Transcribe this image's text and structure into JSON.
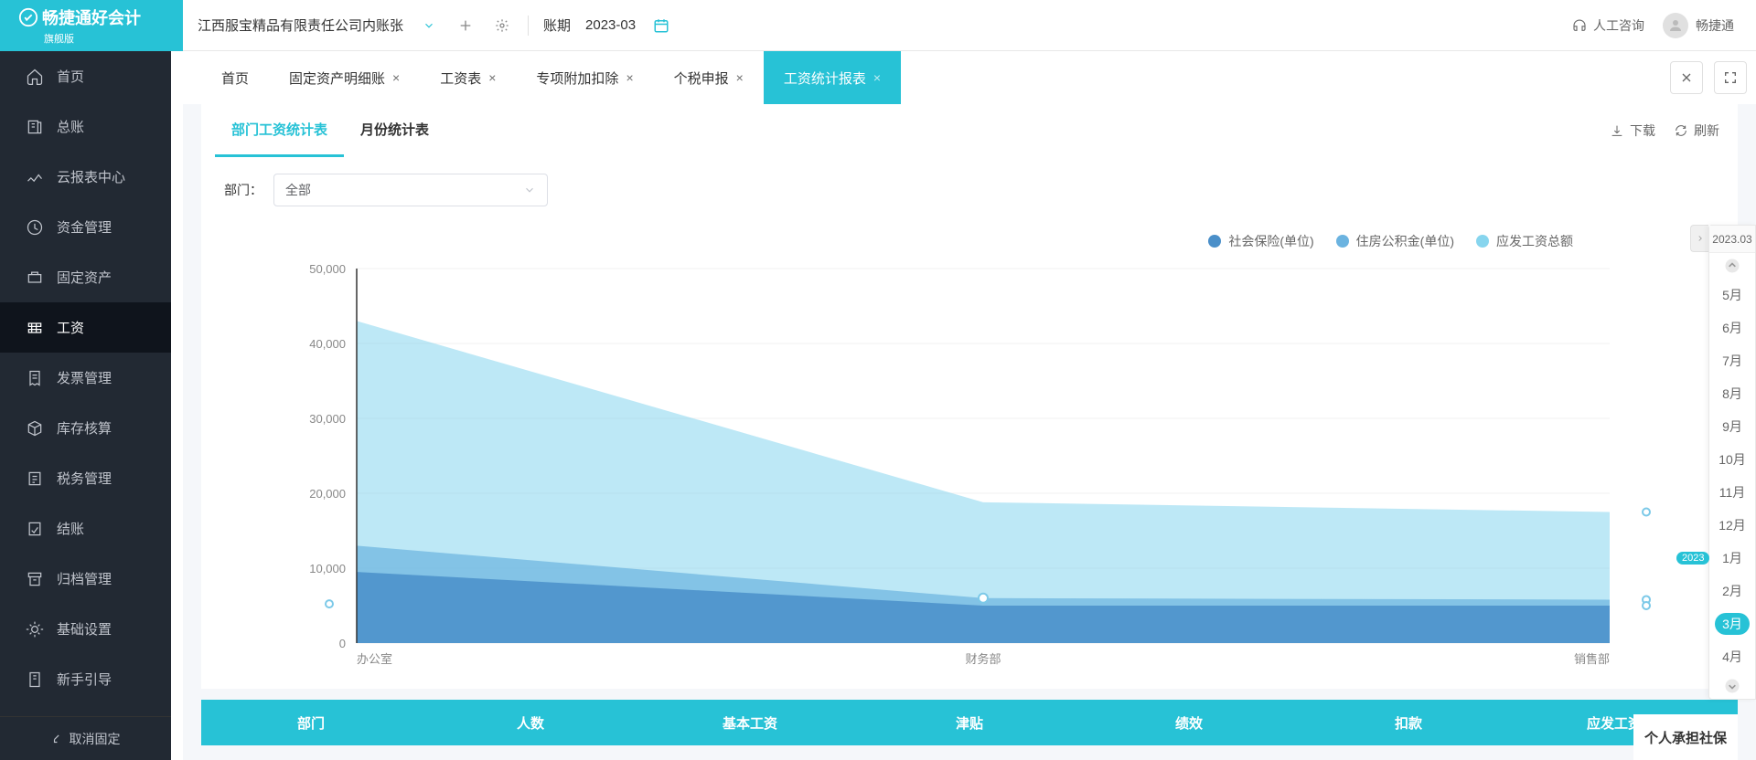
{
  "logo": {
    "main": "畅捷通好会计",
    "sub": "旗舰版"
  },
  "company": {
    "name": "江西服宝精品有限责任公司内账张"
  },
  "period": {
    "label": "账期",
    "value": "2023-03"
  },
  "headerRight": {
    "support": "人工咨询",
    "user": "畅捷通"
  },
  "sidebar": {
    "items": [
      {
        "label": "首页",
        "icon": "home"
      },
      {
        "label": "总账",
        "icon": "ledger"
      },
      {
        "label": "云报表中心",
        "icon": "report"
      },
      {
        "label": "资金管理",
        "icon": "funds"
      },
      {
        "label": "固定资产",
        "icon": "asset"
      },
      {
        "label": "工资",
        "icon": "salary",
        "active": true
      },
      {
        "label": "发票管理",
        "icon": "invoice"
      },
      {
        "label": "库存核算",
        "icon": "stock"
      },
      {
        "label": "税务管理",
        "icon": "tax"
      },
      {
        "label": "结账",
        "icon": "close"
      },
      {
        "label": "归档管理",
        "icon": "archive"
      },
      {
        "label": "基础设置",
        "icon": "settings"
      },
      {
        "label": "新手引导",
        "icon": "guide"
      }
    ],
    "bottom": "取消固定"
  },
  "tabs": [
    {
      "label": "首页",
      "closable": false
    },
    {
      "label": "固定资产明细账",
      "closable": true
    },
    {
      "label": "工资表",
      "closable": true
    },
    {
      "label": "专项附加扣除",
      "closable": true
    },
    {
      "label": "个税申报",
      "closable": true
    },
    {
      "label": "工资统计报表",
      "closable": true,
      "active": true
    }
  ],
  "subTabs": [
    {
      "label": "部门工资统计表",
      "active": true
    },
    {
      "label": "月份统计表"
    }
  ],
  "toolbar": {
    "download": "下载",
    "refresh": "刷新"
  },
  "filter": {
    "label": "部门：",
    "value": "全部"
  },
  "chart": {
    "type": "area",
    "legend": [
      {
        "label": "社会保险(单位)",
        "color": "#4a8fc9"
      },
      {
        "label": "住房公积金(单位)",
        "color": "#6bb3e0"
      },
      {
        "label": "应发工资总额",
        "color": "#87d5ee"
      }
    ],
    "categories": [
      "办公室",
      "财务部",
      "销售部"
    ],
    "series": {
      "social": [
        9500,
        5000,
        5000
      ],
      "housing": [
        13000,
        6000,
        5800
      ],
      "payroll": [
        43000,
        18800,
        17500
      ]
    },
    "ylim": [
      0,
      50000
    ],
    "ytick_step": 10000,
    "yticks": [
      "0",
      "10,000",
      "20,000",
      "30,000",
      "40,000",
      "50,000"
    ],
    "colors": {
      "social_fill": "#4a8fc9",
      "social_opacity": 0.85,
      "housing_fill": "#6bb3e0",
      "housing_opacity": 0.7,
      "payroll_fill": "#87d5ee",
      "payroll_opacity": 0.55,
      "grid": "#f0f0f0",
      "axis": "#333",
      "label": "#888"
    },
    "marker_color": "#7cc9e8",
    "label_fontsize": 13
  },
  "tableHeader": [
    "部门",
    "人数",
    "基本工资",
    "津贴",
    "绩效",
    "扣款",
    "应发工资合计"
  ],
  "tableExtra": "个人承担社保",
  "monthRail": {
    "header": "2023.03",
    "year": "2023",
    "months": [
      "5月",
      "6月",
      "7月",
      "8月",
      "9月",
      "10月",
      "11月",
      "12月",
      "1月",
      "2月",
      "3月",
      "4月"
    ],
    "current": "3月",
    "yearBreakIndex": 8
  }
}
